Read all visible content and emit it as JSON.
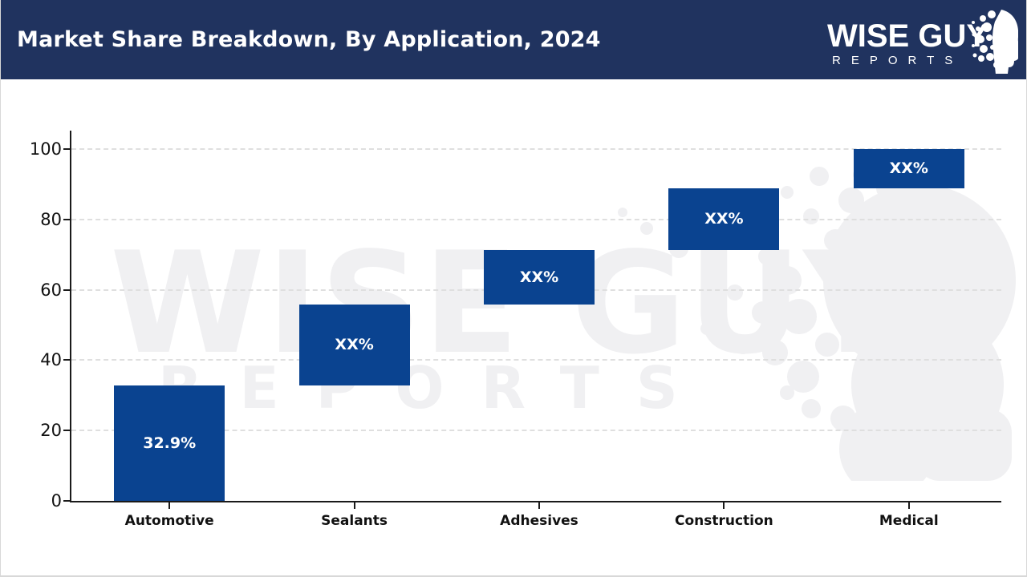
{
  "header": {
    "title": "Market Share Breakdown, By Application, 2024",
    "bg_color": "#20335f",
    "logo": {
      "line1": "WISE GUY",
      "line2": "REPORTS"
    }
  },
  "watermark": {
    "line1": "WISE GUY",
    "line2": "REPORTS",
    "color": "#f0f0f2"
  },
  "chart_data": {
    "type": "waterfall",
    "title": "Market Share Breakdown, By Application, 2024",
    "categories": [
      "Automotive",
      "Sealants",
      "Adhesives",
      "Construction",
      "Medical"
    ],
    "segments": [
      {
        "category": "Automotive",
        "start": 0,
        "end": 32.9,
        "label": "32.9%"
      },
      {
        "category": "Sealants",
        "start": 32.9,
        "end": 55.8,
        "label": "XX%"
      },
      {
        "category": "Adhesives",
        "start": 55.9,
        "end": 71.4,
        "label": "XX%"
      },
      {
        "category": "Construction",
        "start": 71.4,
        "end": 88.8,
        "label": "XX%"
      },
      {
        "category": "Medical",
        "start": 88.9,
        "end": 100,
        "label": "XX%"
      }
    ],
    "y_ticks": [
      0,
      20,
      40,
      60,
      80,
      100
    ],
    "ylim": [
      0,
      105
    ],
    "xlabel": "",
    "ylabel": "",
    "bar_color": "#0a4390",
    "bar_label_color": "#ffffff",
    "grid": "horizontal-dashed",
    "grid_color": "#dfdfdf",
    "legend": "none"
  }
}
